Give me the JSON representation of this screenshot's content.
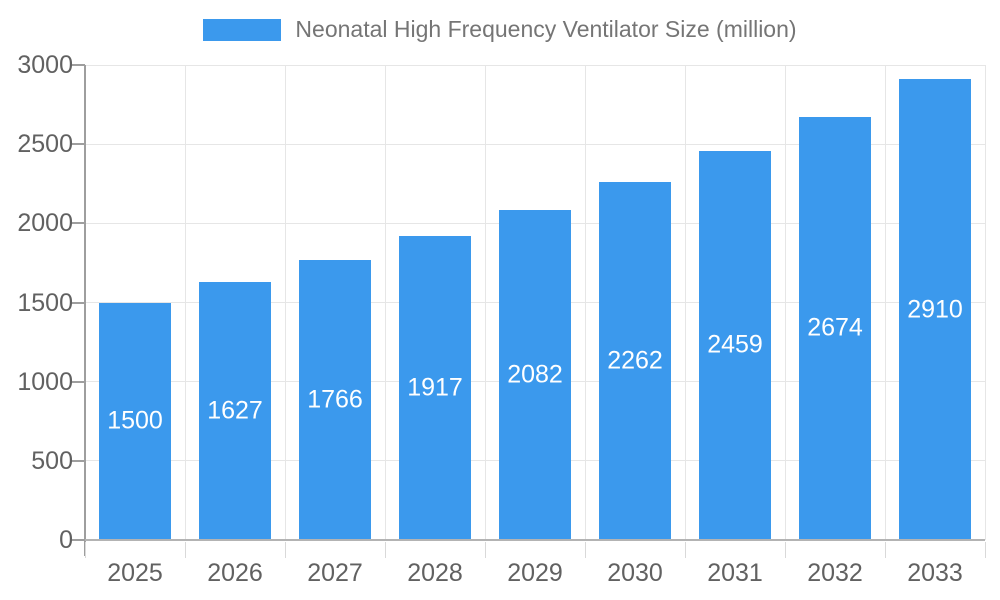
{
  "legend": {
    "label": "Neonatal High Frequency Ventilator Size (million)"
  },
  "chart_data": {
    "type": "bar",
    "title": "Neonatal High Frequency Ventilator Size (million)",
    "categories": [
      "2025",
      "2026",
      "2027",
      "2028",
      "2029",
      "2030",
      "2031",
      "2032",
      "2033"
    ],
    "values": [
      1500,
      1627,
      1766,
      1917,
      2082,
      2262,
      2459,
      2674,
      2910
    ],
    "xlabel": "",
    "ylabel": "",
    "ylim": [
      0,
      3000
    ],
    "yticks": [
      0,
      500,
      1000,
      1500,
      2000,
      2500,
      3000
    ],
    "grid": true,
    "legend_position": "top",
    "value_labels": "inside-center",
    "bar_color": "#3b99ed",
    "value_label_color": "#ffffff",
    "axis_label_color": "#616161",
    "title_color": "#757575",
    "gridline_color": "#e6e6e6"
  }
}
